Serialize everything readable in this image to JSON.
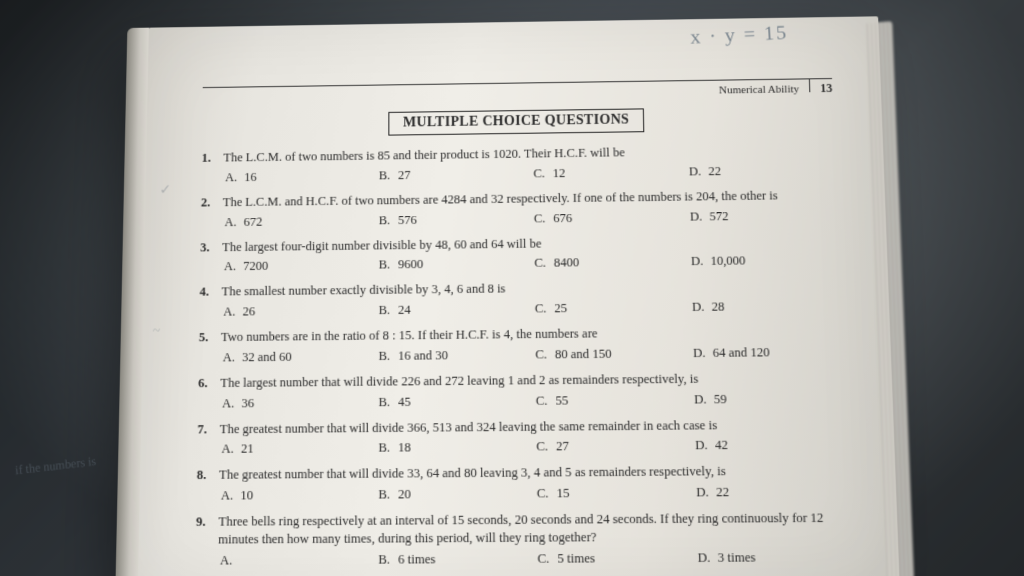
{
  "handwriting_top": "x · y = 15",
  "running_head": {
    "label": "Numerical Ability",
    "page_num": "13"
  },
  "section_title": "MULTIPLE CHOICE QUESTIONS",
  "margin_note": "if the numbers is",
  "questions": [
    {
      "stem": "The L.C.M. of two numbers is 85 and their product is 1020. Their H.C.F. will be",
      "opts": {
        "A": "16",
        "B": "27",
        "C": "12",
        "D": "22"
      }
    },
    {
      "stem": "The L.C.M. and H.C.F. of two numbers are 4284 and 32 respectively. If one of the numbers is 204, the other is",
      "opts": {
        "A": "672",
        "B": "576",
        "C": "676",
        "D": "572"
      }
    },
    {
      "stem": "The largest four-digit number divisible by 48, 60 and 64 will be",
      "opts": {
        "A": "7200",
        "B": "9600",
        "C": "8400",
        "D": "10,000"
      }
    },
    {
      "stem": "The smallest number exactly divisible by 3, 4, 6 and 8 is",
      "opts": {
        "A": "26",
        "B": "24",
        "C": "25",
        "D": "28"
      }
    },
    {
      "stem": "Two numbers are in the ratio of 8 : 15. If their H.C.F. is 4, the numbers are",
      "opts": {
        "A": "32 and 60",
        "B": "16 and 30",
        "C": "80 and 150",
        "D": "64 and 120"
      }
    },
    {
      "stem": "The largest number that will divide 226 and 272 leaving 1 and 2 as remainders respectively, is",
      "opts": {
        "A": "36",
        "B": "45",
        "C": "55",
        "D": "59"
      }
    },
    {
      "stem": "The greatest number that will divide 366, 513 and 324 leaving the same remainder in each case is",
      "opts": {
        "A": "21",
        "B": "18",
        "C": "27",
        "D": "42"
      }
    },
    {
      "stem": "The greatest number that will divide 33, 64 and 80 leaving 3, 4 and 5 as remainders respectively, is",
      "opts": {
        "A": "10",
        "B": "20",
        "C": "15",
        "D": "22"
      }
    },
    {
      "stem": "Three bells ring respectively at an interval of 15 seconds, 20 seconds and 24 seconds. If they ring continuously for 12 minutes then how many times, during this period, will they ring together?",
      "opts": {
        "A": "",
        "B": "6 times",
        "C": "5 times",
        "D": "3 times"
      }
    }
  ],
  "colors": {
    "ink": "#2b2b2b",
    "paper_light": "#f0eee8",
    "paper_dark": "#cfcdc6",
    "pen": "#5a6a78"
  },
  "typography": {
    "body_pt": 12.5,
    "title_pt": 14,
    "running_pt": 11
  }
}
